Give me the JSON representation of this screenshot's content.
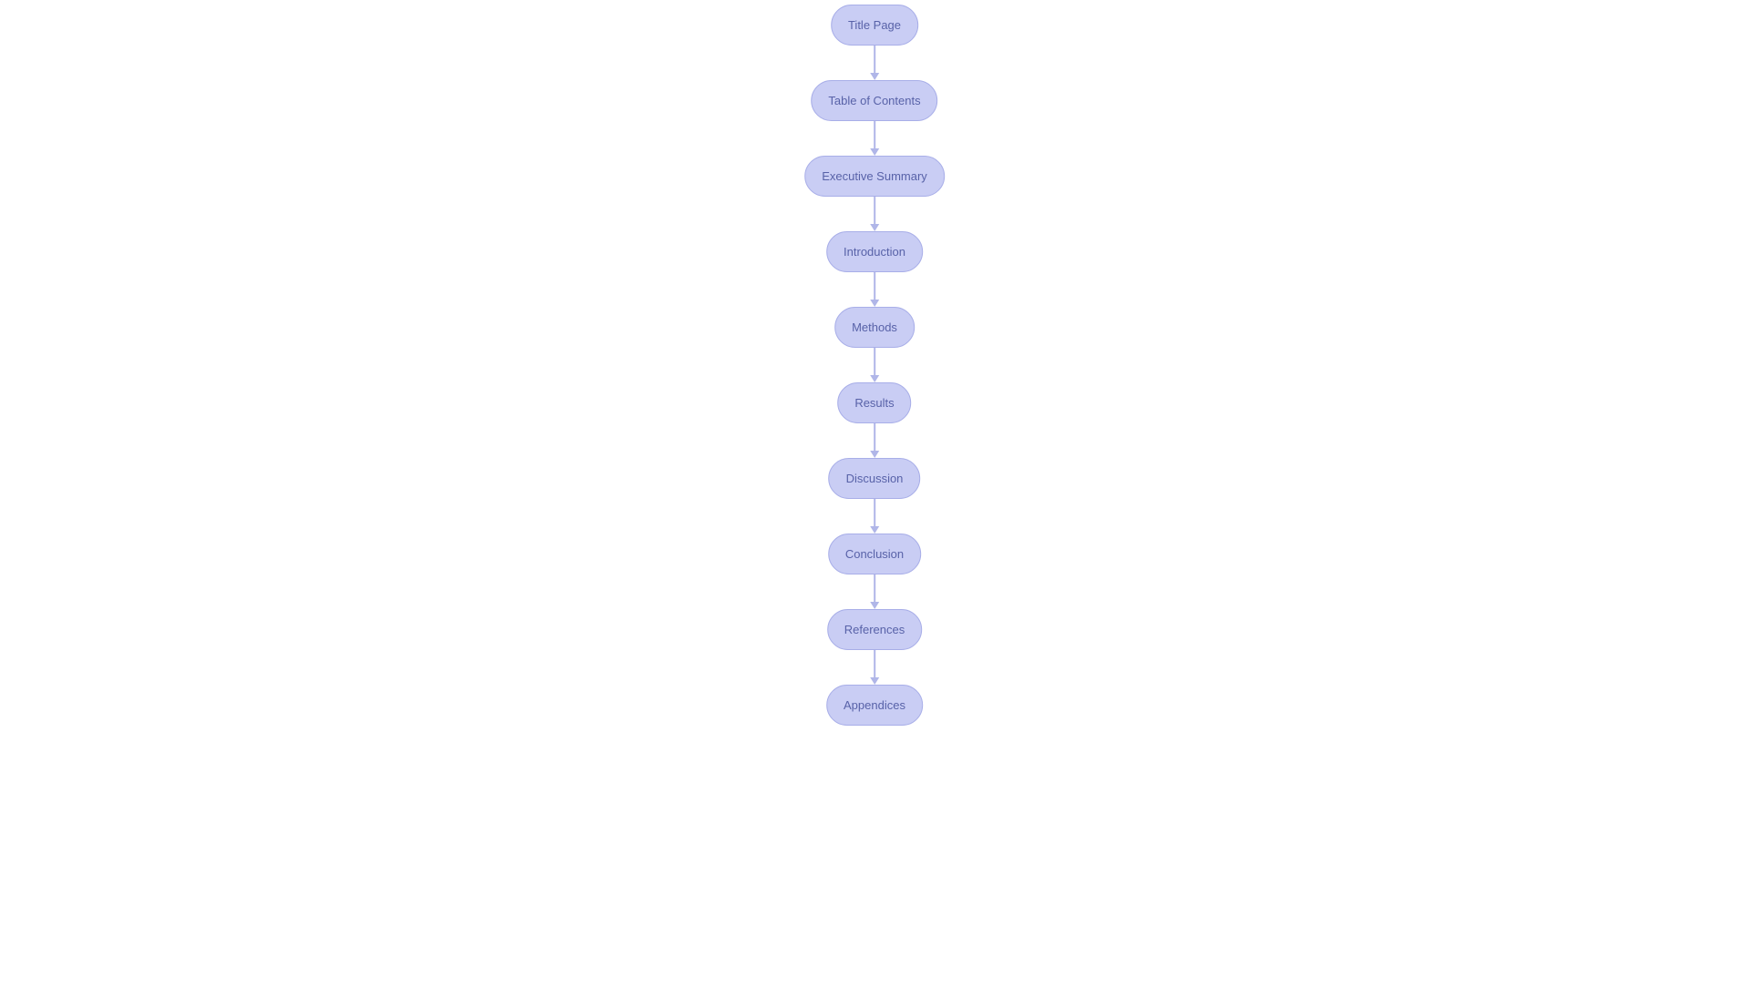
{
  "flowchart": {
    "type": "flowchart",
    "direction": "vertical",
    "background_color": "#ffffff",
    "node_fill": "#c9cdf4",
    "node_border": "#a8aee8",
    "text_color": "#5862a8",
    "edge_color": "#b0b6e8",
    "font_size": 13,
    "node_border_radius": 999,
    "node_padding_x": 18,
    "node_padding_y": 14,
    "connector_height": 38,
    "arrow_size": 8,
    "nodes": [
      {
        "id": "title-page",
        "label": "Title Page"
      },
      {
        "id": "toc",
        "label": "Table of Contents"
      },
      {
        "id": "exec-summary",
        "label": "Executive Summary"
      },
      {
        "id": "introduction",
        "label": "Introduction"
      },
      {
        "id": "methods",
        "label": "Methods"
      },
      {
        "id": "results",
        "label": "Results"
      },
      {
        "id": "discussion",
        "label": "Discussion"
      },
      {
        "id": "conclusion",
        "label": "Conclusion"
      },
      {
        "id": "references",
        "label": "References"
      },
      {
        "id": "appendices",
        "label": "Appendices"
      }
    ],
    "edges": [
      {
        "from": "title-page",
        "to": "toc"
      },
      {
        "from": "toc",
        "to": "exec-summary"
      },
      {
        "from": "exec-summary",
        "to": "introduction"
      },
      {
        "from": "introduction",
        "to": "methods"
      },
      {
        "from": "methods",
        "to": "results"
      },
      {
        "from": "results",
        "to": "discussion"
      },
      {
        "from": "discussion",
        "to": "conclusion"
      },
      {
        "from": "conclusion",
        "to": "references"
      },
      {
        "from": "references",
        "to": "appendices"
      }
    ]
  }
}
